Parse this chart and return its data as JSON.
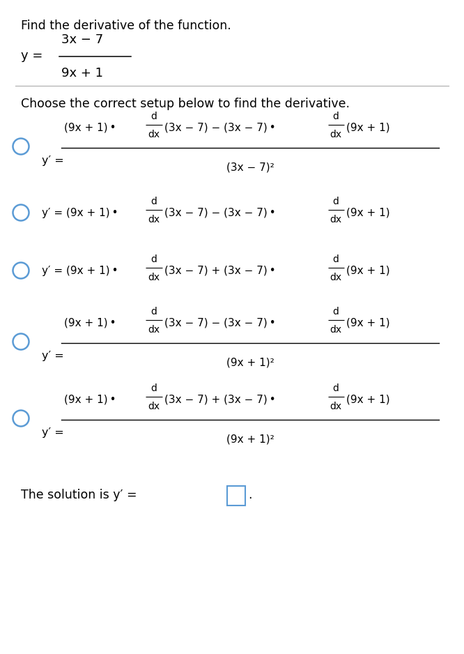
{
  "bg_color": "#ffffff",
  "text_color": "#000000",
  "circle_color": "#5b9bd5",
  "title": "Find the derivative of the function.",
  "func_y_label": "y =",
  "func_numerator": "3x − 7",
  "func_denominator": "9x + 1",
  "choose_text": "Choose the correct setup below to find the derivative.",
  "solution_text": "The solution is y′ =",
  "sep_color": "#aaaaaa",
  "fig_width": 6.66,
  "fig_height": 9.38,
  "dpi": 100
}
